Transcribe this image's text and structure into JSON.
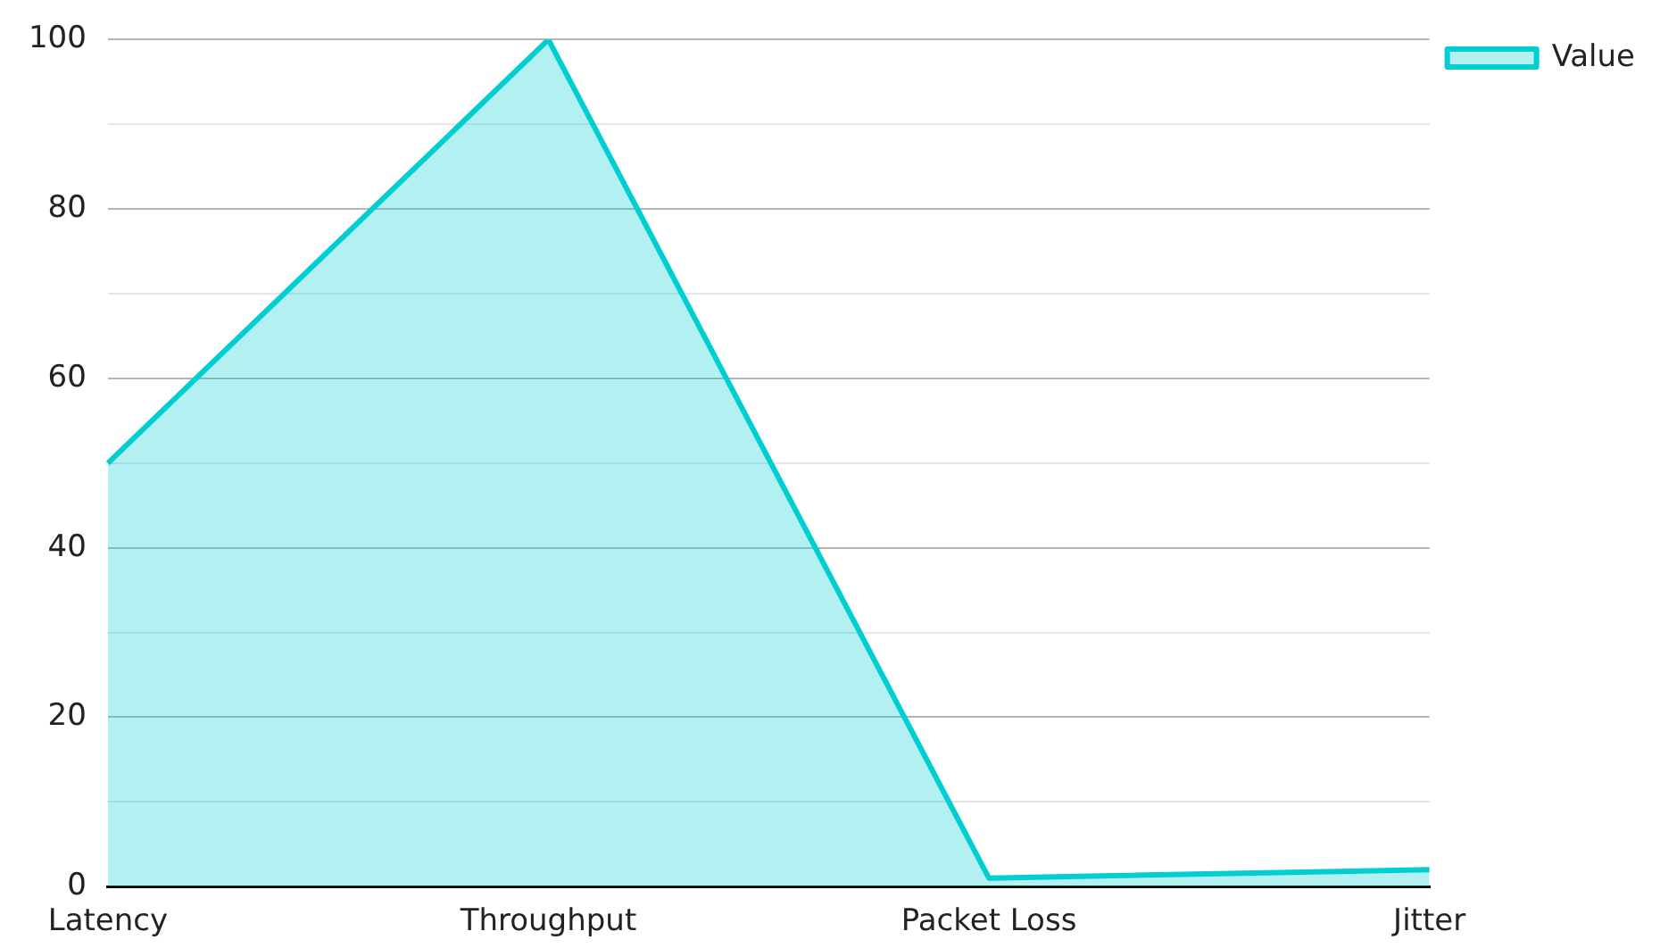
{
  "chart_data": {
    "type": "area",
    "categories": [
      "Latency",
      "Throughput",
      "Packet Loss",
      "Jitter"
    ],
    "series": [
      {
        "name": "Value",
        "color": "#00ced1",
        "values": [
          50,
          100,
          1,
          2
        ]
      }
    ],
    "ylim": [
      0,
      100
    ],
    "yticks": [
      0,
      {
        "value": 10,
        "label": null
      },
      20,
      {
        "value": 30,
        "label": null
      },
      40,
      {
        "value": 50,
        "label": null
      },
      60,
      {
        "value": 70,
        "label": null
      },
      80,
      {
        "value": 90,
        "label": null
      },
      100
    ],
    "grid": "y",
    "legend": "top right"
  }
}
